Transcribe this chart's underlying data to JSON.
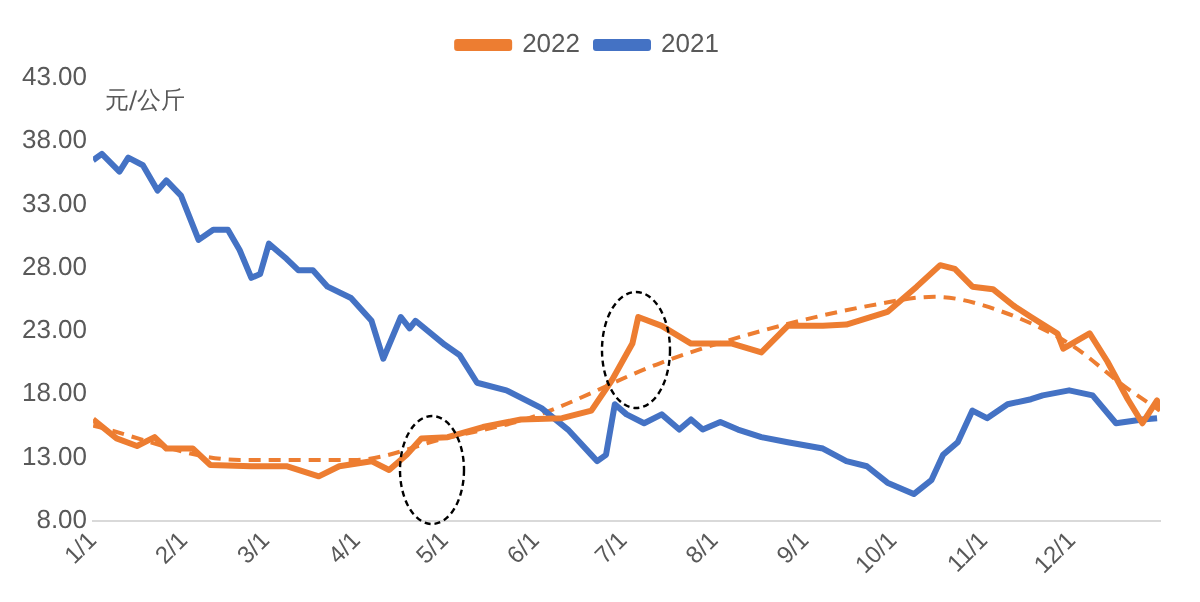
{
  "chart_data": {
    "type": "line",
    "ylabel": "元/公斤",
    "xlim": [
      "--01-01",
      "--12-31"
    ],
    "xticks": [
      {
        "value": "--01-01",
        "label": "1/1"
      },
      {
        "value": "--02-01",
        "label": "2/1"
      },
      {
        "value": "--03-01",
        "label": "3/1"
      },
      {
        "value": "--04-01",
        "label": "4/1"
      },
      {
        "value": "--05-01",
        "label": "5/1"
      },
      {
        "value": "--06-01",
        "label": "6/1"
      },
      {
        "value": "--07-01",
        "label": "7/1"
      },
      {
        "value": "--08-01",
        "label": "8/1"
      },
      {
        "value": "--09-01",
        "label": "9/1"
      },
      {
        "value": "--10-01",
        "label": "10/1"
      },
      {
        "value": "--11-01",
        "label": "11/1"
      },
      {
        "value": "--12-01",
        "label": "12/1"
      }
    ],
    "ylim": [
      8,
      43
    ],
    "yticks": [
      {
        "value": 8,
        "label": "8.00"
      },
      {
        "value": 13,
        "label": "13.00"
      },
      {
        "value": 18,
        "label": "18.00"
      },
      {
        "value": 23,
        "label": "23.00"
      },
      {
        "value": 28,
        "label": "28.00"
      },
      {
        "value": 33,
        "label": "33.00"
      },
      {
        "value": 38,
        "label": "38.00"
      },
      {
        "value": 43,
        "label": "43.00"
      }
    ],
    "grid": false,
    "legend": "top",
    "marker": "none",
    "line_style": "solid",
    "series": [
      {
        "name": "2022",
        "color": "#ed7d31",
        "x": [
          "--01-01",
          "--01-09",
          "--01-16",
          "--01-22",
          "--01-26",
          "--02-04",
          "--02-10",
          "--02-24",
          "--03-08",
          "--03-19",
          "--03-26",
          "--04-06",
          "--04-12",
          "--04-18",
          "--04-23",
          "--05-02",
          "--05-14",
          "--05-27",
          "--06-10",
          "--06-20",
          "--06-27",
          "--07-04",
          "--07-06",
          "--07-14",
          "--07-24",
          "--08-07",
          "--08-17",
          "--08-26",
          "--09-07",
          "--09-15",
          "--09-29",
          "--10-09",
          "--10-17",
          "--10-22",
          "--10-28",
          "--11-04",
          "--11-11",
          "--11-17",
          "--11-26",
          "--11-28",
          "--12-07",
          "--12-13",
          "--12-20",
          "--12-25",
          "--12-30",
          "--12-31"
        ],
        "values": [
          16.0,
          14.5,
          13.9,
          14.6,
          13.7,
          13.7,
          12.4,
          12.3,
          12.3,
          11.5,
          12.3,
          12.7,
          12.0,
          13.2,
          14.5,
          14.6,
          15.4,
          16.0,
          16.1,
          16.7,
          19.1,
          22.0,
          24.1,
          23.4,
          22.0,
          22.0,
          21.3,
          23.4,
          23.4,
          23.5,
          24.5,
          26.5,
          28.2,
          27.9,
          26.5,
          26.3,
          25.0,
          24.1,
          22.8,
          21.6,
          22.8,
          20.6,
          17.6,
          15.7,
          17.5,
          16.7
        ]
      },
      {
        "name": "2021",
        "color": "#4472c4",
        "x": [
          "--01-01",
          "--01-04",
          "--01-10",
          "--01-13",
          "--01-18",
          "--01-23",
          "--01-26",
          "--01-31",
          "--02-06",
          "--02-11",
          "--02-16",
          "--02-20",
          "--02-24",
          "--02-27",
          "--03-02",
          "--03-08",
          "--03-12",
          "--03-17",
          "--03-22",
          "--03-30",
          "--04-06",
          "--04-10",
          "--04-16",
          "--04-19",
          "--04-21",
          "--05-01",
          "--05-06",
          "--05-12",
          "--05-22",
          "--06-03",
          "--06-12",
          "--06-20",
          "--06-22",
          "--06-25",
          "--06-28",
          "--07-02",
          "--07-08",
          "--07-14",
          "--07-20",
          "--07-24",
          "--07-28",
          "--08-03",
          "--08-09",
          "--08-17",
          "--08-26",
          "--09-07",
          "--09-15",
          "--09-22",
          "--09-29",
          "--10-08",
          "--10-14",
          "--10-18",
          "--10-23",
          "--10-28",
          "--11-02",
          "--11-09",
          "--11-17",
          "--11-21",
          "--11-30",
          "--12-08",
          "--12-16",
          "--12-25",
          "--12-30"
        ],
        "values": [
          36.5,
          37.0,
          35.6,
          36.7,
          36.1,
          34.1,
          34.9,
          33.7,
          30.2,
          31.0,
          31.0,
          29.4,
          27.2,
          27.5,
          29.9,
          28.7,
          27.8,
          27.8,
          26.5,
          25.6,
          23.8,
          20.8,
          24.1,
          23.2,
          23.8,
          21.9,
          21.1,
          18.9,
          18.3,
          16.9,
          15.2,
          13.2,
          12.7,
          13.2,
          17.2,
          16.4,
          15.7,
          16.4,
          15.2,
          16.0,
          15.2,
          15.8,
          15.2,
          14.6,
          14.2,
          13.7,
          12.7,
          12.3,
          11.0,
          10.1,
          11.2,
          13.2,
          14.2,
          16.7,
          16.1,
          17.2,
          17.6,
          17.9,
          18.3,
          17.9,
          15.7,
          16.0,
          16.1
        ]
      },
      {
        "type": "line",
        "color": "#ed7d31",
        "line_style": "dashed",
        "x": [
          "--01-01",
          "--02-20",
          "--03-31",
          "--05-01",
          "--05-31",
          "--07-14",
          "--08-17",
          "--09-23",
          "--10-15",
          "--11-01",
          "--11-30",
          "--12-19",
          "--12-31"
        ],
        "values": [
          15.5,
          12.8,
          12.8,
          14.5,
          16.2,
          20.5,
          23.0,
          25.0,
          25.7,
          25.0,
          22.0,
          18.6,
          16.7
        ]
      }
    ]
  }
}
